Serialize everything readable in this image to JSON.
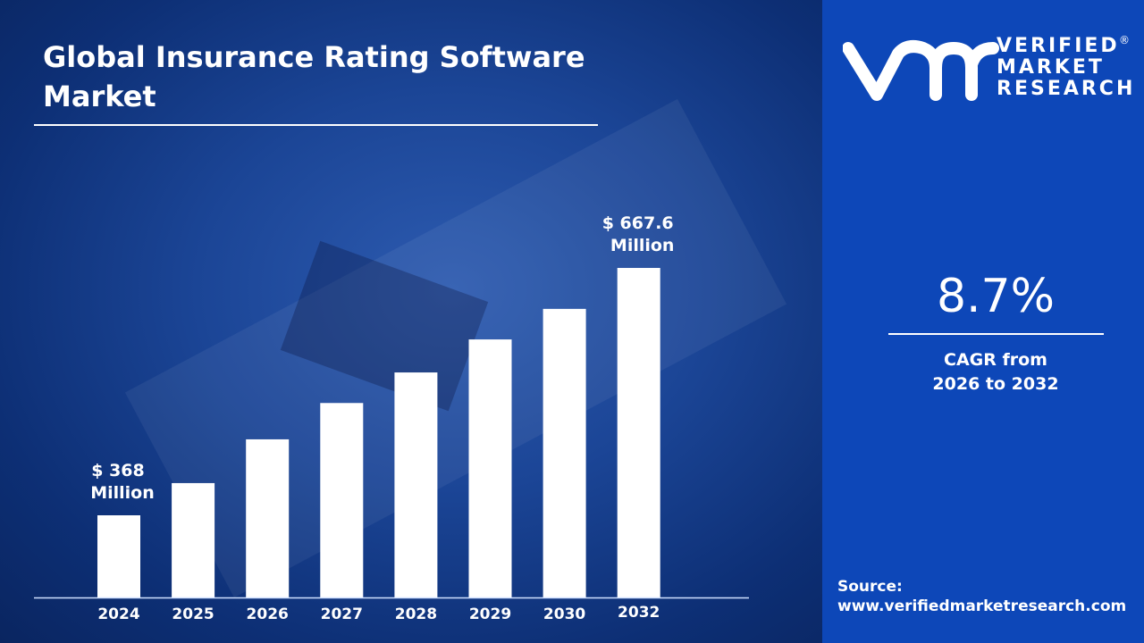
{
  "title": "Global Insurance Rating Software Market",
  "brand": {
    "line1": "VERIFIED",
    "line2": "MARKET",
    "line3": "RESEARCH",
    "registered": "®",
    "monogram": "vmr"
  },
  "cagr": {
    "value": "8.7%",
    "label_line1": "CAGR from",
    "label_line2": "2026 to 2032"
  },
  "source": {
    "label": "Source:",
    "url": "www.verifiedmarketresearch.com"
  },
  "colors": {
    "panel": "#0d47b8",
    "background": "#1b4596",
    "bars": "#ffffff"
  },
  "chart_data": {
    "type": "bar",
    "title": "Global Insurance Rating Software Market",
    "categories": [
      "2024",
      "2025",
      "2026",
      "2027",
      "2028",
      "2029",
      "2030",
      "2032"
    ],
    "values": [
      368,
      407,
      460,
      504,
      541,
      581,
      618,
      667.6
    ],
    "unit": "$ Million",
    "data_labels": [
      {
        "category": "2024",
        "line1": "$ 368",
        "line2": "Million"
      },
      {
        "category": "2032",
        "line1": "$ 667.6",
        "line2": "Million"
      }
    ],
    "grid": false,
    "legend": "none"
  }
}
